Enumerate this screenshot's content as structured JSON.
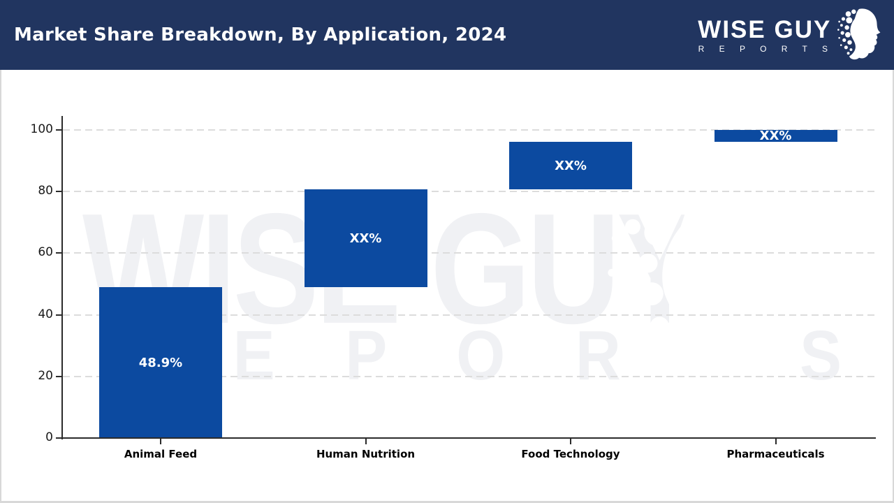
{
  "header": {
    "title": "Market Share Breakdown, By Application, 2024",
    "bg_color": "#213560",
    "logo": {
      "line1": "WISE GUY",
      "line2": "R E P O R T S"
    }
  },
  "watermark": {
    "line1": "WISE GUY",
    "line2": "R E P O R T S"
  },
  "chart_data": {
    "type": "bar",
    "subtype": "waterfall",
    "title": "",
    "xlabel": "",
    "ylabel": "",
    "categories": [
      "Animal Feed",
      "Human Nutrition",
      "Food Technology",
      "Pharmaceuticals"
    ],
    "segments": [
      {
        "category": "Animal Feed",
        "start": 0,
        "end": 48.9,
        "label": "48.9%"
      },
      {
        "category": "Human Nutrition",
        "start": 48.9,
        "end": 80.7,
        "label": "XX%"
      },
      {
        "category": "Food Technology",
        "start": 80.7,
        "end": 96.1,
        "label": "XX%"
      },
      {
        "category": "Pharmaceuticals",
        "start": 96.1,
        "end": 100,
        "label": "XX%"
      }
    ],
    "ylim": [
      0,
      104.5
    ],
    "yticks": [
      0,
      20,
      40,
      60,
      80,
      100
    ],
    "grid": "horizontal-dashed",
    "legend": "none",
    "bar_color": "#0c4aa0",
    "bar_label_color": "#ffffff"
  }
}
